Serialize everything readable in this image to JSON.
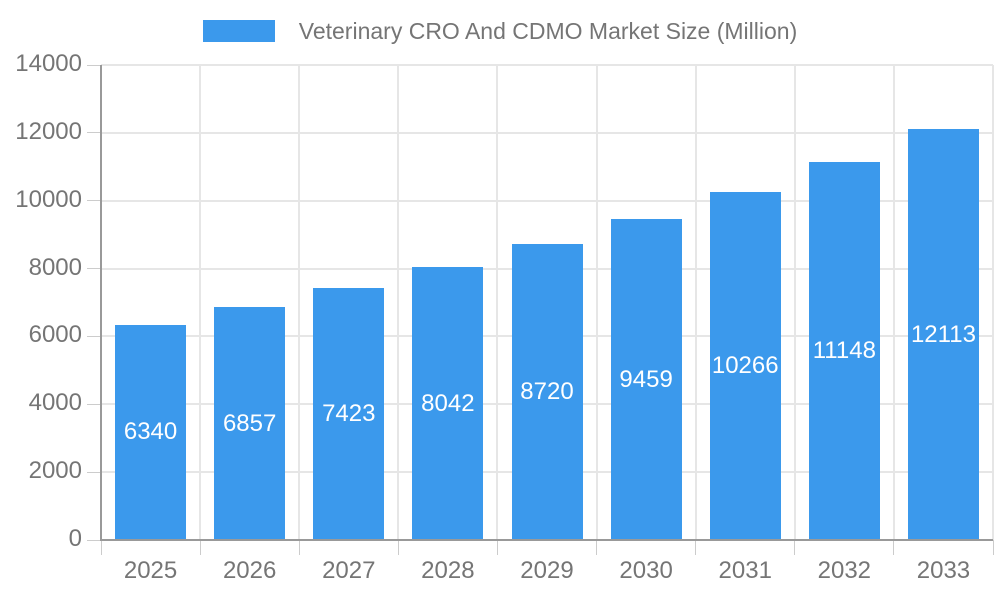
{
  "legend": {
    "label": "Veterinary CRO And CDMO Market Size (Million)"
  },
  "chart_data": {
    "type": "bar",
    "title": "Veterinary CRO And CDMO Market Size (Million)",
    "series_name": "Veterinary CRO And CDMO Market Size (Million)",
    "categories": [
      "2025",
      "2026",
      "2027",
      "2028",
      "2029",
      "2030",
      "2031",
      "2032",
      "2033"
    ],
    "values": [
      6340,
      6857,
      7423,
      8042,
      8720,
      9459,
      10266,
      11148,
      12113
    ],
    "xlabel": "",
    "ylabel": "",
    "ylim": [
      0,
      14000
    ],
    "ytick_step": 2000,
    "ytick_labels": [
      "0",
      "2000",
      "4000",
      "6000",
      "8000",
      "10000",
      "12000",
      "14000"
    ],
    "grid": true,
    "legend_position": "top-center",
    "value_label_position": "inside-center",
    "colors": {
      "bar": "#3B99EC",
      "axis_text": "#757575",
      "axis_line": "#999999",
      "gridline": "#e6e6e6",
      "tick": "#cccccc",
      "value_label": "#ffffff",
      "background": "#ffffff"
    }
  }
}
